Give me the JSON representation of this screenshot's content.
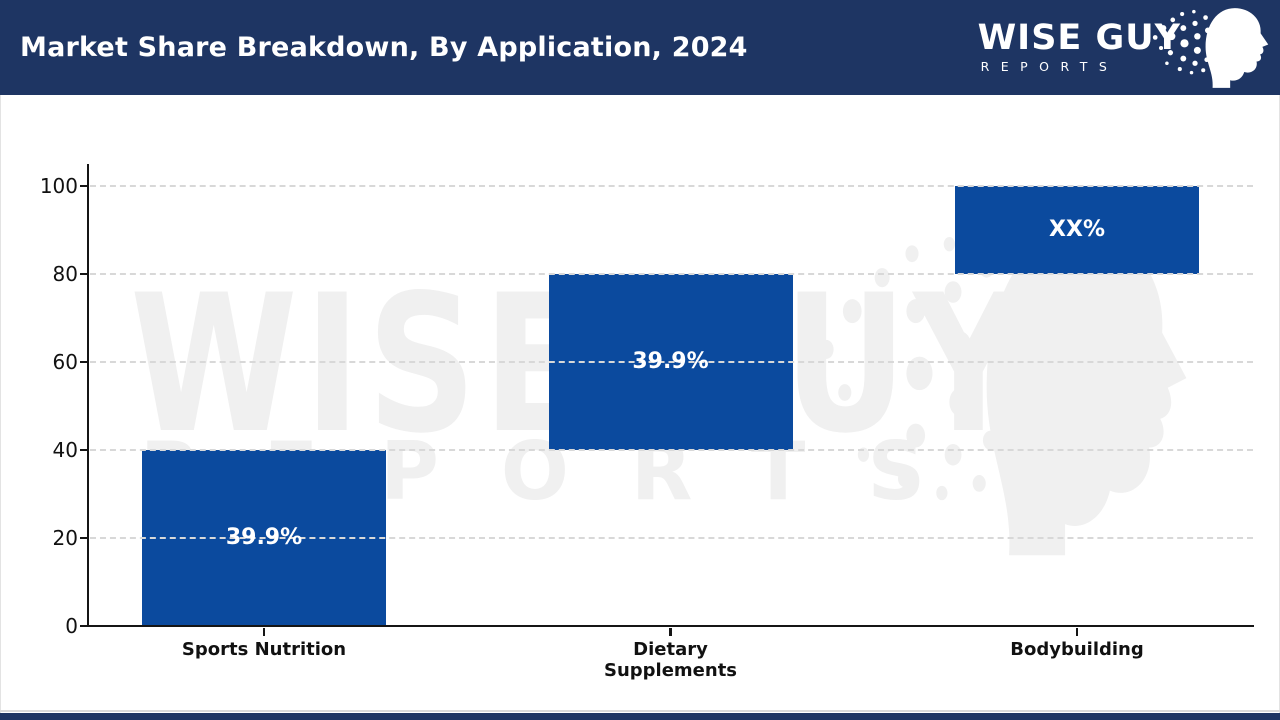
{
  "header": {
    "title": "Market Share Breakdown, By Application, 2024",
    "logo": {
      "line1": "WISE GUY",
      "line2": "REPORTS"
    }
  },
  "watermark": {
    "line1": "WISE GUY",
    "line2": "REPORTS"
  },
  "colors": {
    "header_bg": "#1E3563",
    "footer_bg": "#1E3563",
    "bar": "#0B4A9E",
    "bar_label": "#FFFFFF",
    "grid": "#D8D8D8",
    "axis": "#151515",
    "ink": "#111111",
    "watermark": "#F0F0F0",
    "edge": "#E3E3E3",
    "hairline": "#D9D9D9"
  },
  "chart_data": {
    "type": "bar",
    "variant": "floating-stacked-segments",
    "title": "Market Share Breakdown, By Application, 2024",
    "categories": [
      "Sports Nutrition",
      "Dietary\nSupplements",
      "Bodybuilding"
    ],
    "segments": [
      {
        "category": "Sports Nutrition",
        "start": 0,
        "end": 40,
        "label": "39.9%"
      },
      {
        "category": "Dietary Supplements",
        "start": 40,
        "end": 80,
        "label": "39.9%"
      },
      {
        "category": "Bodybuilding",
        "start": 80,
        "end": 100,
        "label": "XX%"
      }
    ],
    "yticks": [
      0,
      20,
      40,
      60,
      80,
      100
    ],
    "ylim": [
      0,
      100
    ],
    "xlabel": "",
    "ylabel": "",
    "grid": "horizontal-dashed",
    "legend": false
  }
}
